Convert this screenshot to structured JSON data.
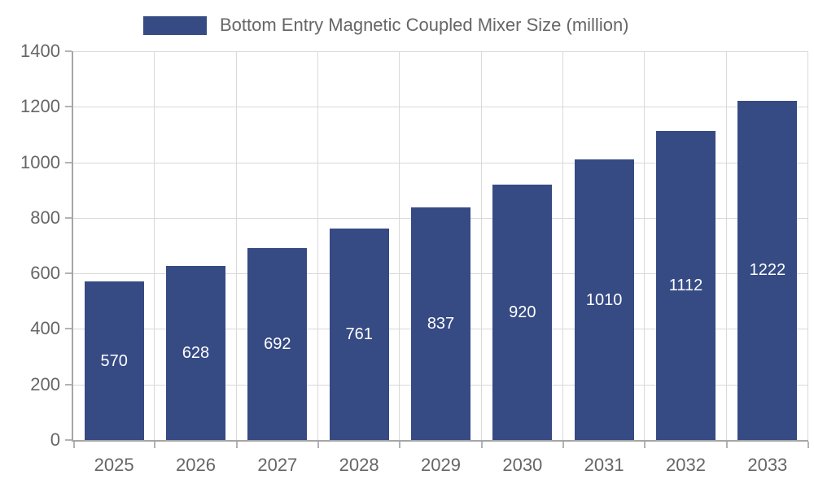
{
  "legend": {
    "label": "Bottom Entry Magnetic Coupled Mixer Size (million)",
    "swatch_color": "#364A84",
    "text_color": "#666666"
  },
  "chart_data": {
    "type": "bar",
    "title": "Bottom Entry Magnetic Coupled Mixer Size (million)",
    "series_name": "Bottom Entry Magnetic Coupled Mixer Size (million)",
    "categories": [
      "2025",
      "2026",
      "2027",
      "2028",
      "2029",
      "2030",
      "2031",
      "2032",
      "2033"
    ],
    "values": [
      570,
      628,
      692,
      761,
      837,
      920,
      1010,
      1112,
      1222
    ],
    "xlabel": "",
    "ylabel": "",
    "ylim": [
      0,
      1400
    ],
    "ytick_step": 200,
    "yticks": [
      0,
      200,
      400,
      600,
      800,
      1000,
      1200,
      1400
    ],
    "grid": true,
    "legend_position": "top",
    "bar_color": "#364A84",
    "value_label_color": "#ffffff",
    "value_label_position": "center-inside"
  },
  "style": {
    "background": "#ffffff",
    "grid_color": "#d9d9d9",
    "axis_color": "#a6a6a6",
    "tick_color": "#b3b3b3",
    "tick_label_color": "#666666"
  }
}
